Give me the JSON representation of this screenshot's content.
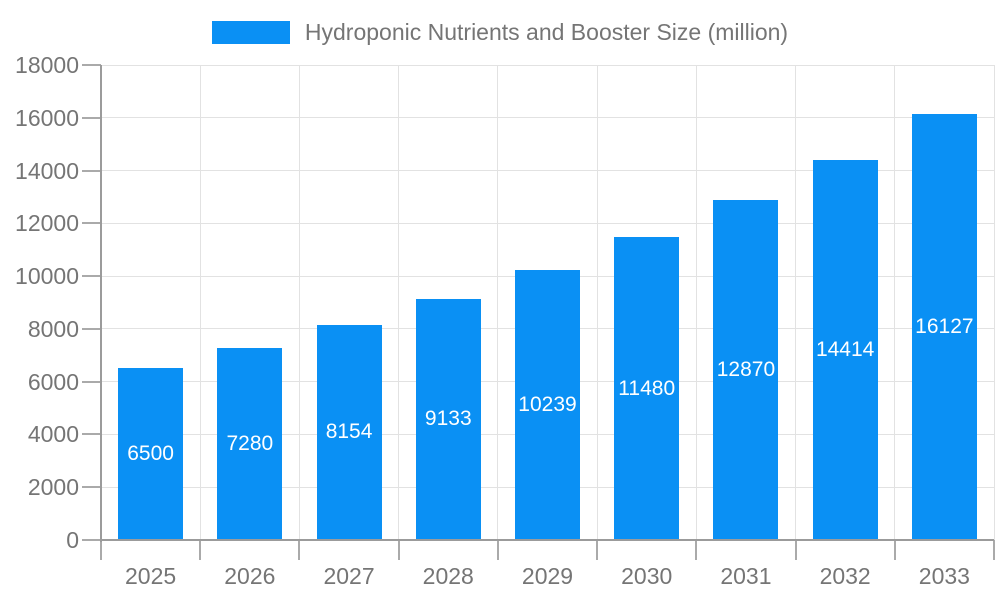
{
  "legend": {
    "label": "Hydroponic Nutrients and Booster Size (million)"
  },
  "chart_data": {
    "type": "bar",
    "title": "Hydroponic Nutrients and Booster Size (million)",
    "categories": [
      "2025",
      "2026",
      "2027",
      "2028",
      "2029",
      "2030",
      "2031",
      "2032",
      "2033"
    ],
    "values": [
      6500,
      7280,
      8154,
      9133,
      10239,
      11480,
      12870,
      14414,
      16127
    ],
    "data_labels": [
      "6500",
      "7280",
      "8154",
      "9133",
      "10239",
      "11480",
      "12870",
      "14414",
      "16127"
    ],
    "xlabel": "",
    "ylabel": "",
    "ylim": [
      0,
      18000
    ],
    "ytick_step": 2000,
    "ytick_labels": [
      "0",
      "2000",
      "4000",
      "6000",
      "8000",
      "10000",
      "12000",
      "14000",
      "16000",
      "18000"
    ],
    "grid": true,
    "legend_position": "top",
    "colors": {
      "bar": "#0a90f4",
      "bar_value_text": "#ffffff",
      "axis_text": "#757575",
      "legend_text": "#757575",
      "gridline": "#e2e2e2",
      "axis_line": "#9b9b9b",
      "tick": "#aaaaaa",
      "background": "#ffffff"
    }
  }
}
